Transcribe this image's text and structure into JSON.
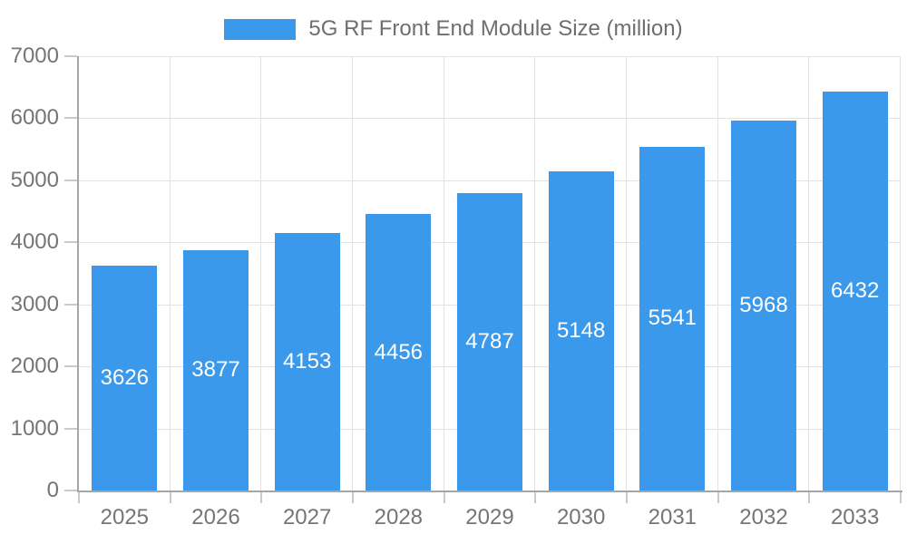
{
  "chart_data": {
    "type": "bar",
    "title": "5G RF Front End Module Size (million)",
    "categories": [
      "2025",
      "2026",
      "2027",
      "2028",
      "2029",
      "2030",
      "2031",
      "2032",
      "2033"
    ],
    "values": [
      3626,
      3877,
      4153,
      4456,
      4787,
      5148,
      5541,
      5968,
      6432
    ],
    "value_labels": [
      "3626",
      "3877",
      "4153",
      "4456",
      "4787",
      "5148",
      "5541",
      "5968",
      "6432"
    ],
    "xlabel": "",
    "ylabel": "",
    "ylim": [
      0,
      7000
    ],
    "yticks": [
      0,
      1000,
      2000,
      3000,
      4000,
      5000,
      6000,
      7000
    ],
    "ytick_labels": [
      "0",
      "1000",
      "2000",
      "3000",
      "4000",
      "5000",
      "6000",
      "7000"
    ],
    "grid": true,
    "legend_position": "top-center",
    "bar_color": "#3b99ec",
    "value_label_color": "#ffffff",
    "axis_label_color": "#757575",
    "title_color": "#6e6e6e",
    "gridline_color": "#e2e2e2",
    "axis_line_color": "#a6a6a6"
  }
}
